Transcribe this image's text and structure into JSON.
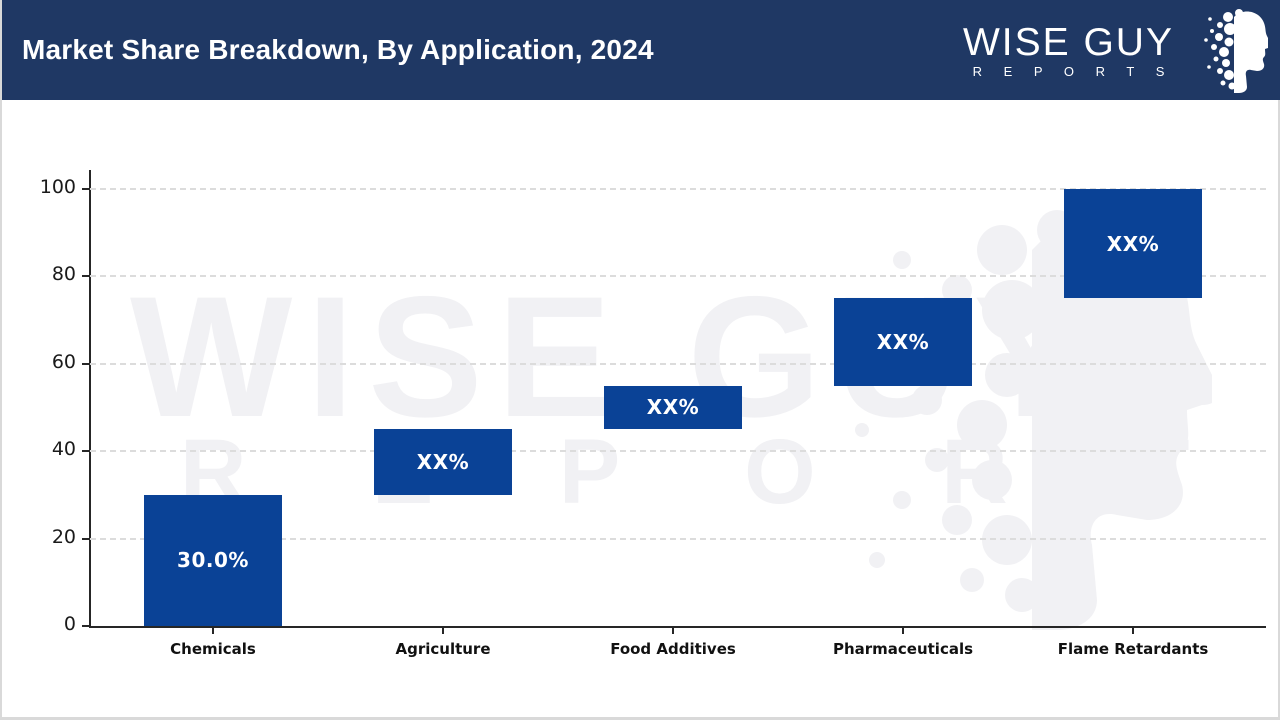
{
  "header": {
    "title": "Market Share Breakdown, By Application, 2024",
    "bg_color": "#1f3864",
    "logo": {
      "line1": "WISE GUY",
      "line2": "REPORTS"
    }
  },
  "watermark": {
    "line1": "WISE GUY",
    "line2": "REPORTS"
  },
  "chart_data": {
    "type": "bar",
    "variant": "waterfall",
    "title": "Market Share Breakdown, By Application, 2024",
    "categories": [
      "Chemicals",
      "Agriculture",
      "Food Additives",
      "Pharmaceuticals",
      "Flame Retardants"
    ],
    "segments": [
      {
        "category": "Chemicals",
        "start": 0,
        "end": 30,
        "label": "30.0%"
      },
      {
        "category": "Agriculture",
        "start": 30,
        "end": 45,
        "label": "XX%"
      },
      {
        "category": "Food Additives",
        "start": 45,
        "end": 55,
        "label": "XX%"
      },
      {
        "category": "Pharmaceuticals",
        "start": 55,
        "end": 75,
        "label": "XX%"
      },
      {
        "category": "Flame Retardants",
        "start": 75,
        "end": 100,
        "label": "XX%"
      }
    ],
    "values": [
      30,
      15,
      10,
      20,
      25
    ],
    "yticks": [
      0,
      20,
      40,
      60,
      80,
      100
    ],
    "ylim": [
      0,
      104
    ],
    "bar_color": "#0a4296",
    "bar_label_color": "#ffffff",
    "axis_color": "#262626",
    "grid": {
      "horizontal": true,
      "style": "dashed",
      "color": "#dcdcdc"
    },
    "legend": "none"
  }
}
